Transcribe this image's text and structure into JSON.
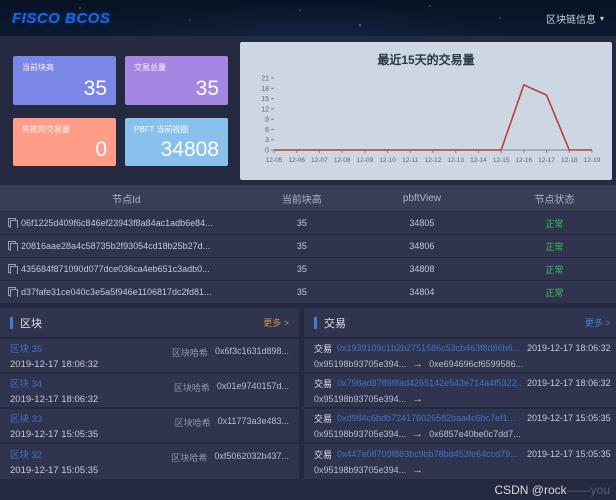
{
  "header": {
    "logo": "FISCO BCOS",
    "nav_dropdown": "区块链信息",
    "caret": "▾"
  },
  "stats": {
    "cards": [
      {
        "label": "当前块高",
        "value": "35",
        "color": "#7b87e6"
      },
      {
        "label": "交易总量",
        "value": "35",
        "color": "#a586e2"
      },
      {
        "label": "失败的交易量",
        "value": "0",
        "color": "#ff9d88"
      },
      {
        "label": "PBFT 当前视图",
        "value": "34808",
        "color": "#8ac0ec"
      }
    ]
  },
  "chart_data": {
    "type": "line",
    "title": "最近15天的交易量",
    "x": [
      "12-05",
      "12-06",
      "12-07",
      "12-08",
      "12-09",
      "12-10",
      "12-11",
      "12-12",
      "12-13",
      "12-14",
      "12-15",
      "12-16",
      "12-17",
      "12-18",
      "12-19"
    ],
    "series": [
      {
        "name": "交易量",
        "values": [
          0,
          0,
          0,
          0,
          0,
          0,
          0,
          0,
          0,
          0,
          0,
          19,
          16,
          0,
          0
        ],
        "color": "#b5413e"
      }
    ],
    "ylim": [
      0,
      21
    ],
    "yticks": [
      0,
      3,
      6,
      9,
      12,
      15,
      18,
      21
    ],
    "grid": false,
    "legend_position": "none",
    "background": "#cdd7e1",
    "xlabel": "",
    "ylabel": ""
  },
  "node_table": {
    "columns": [
      "节点Id",
      "当前块高",
      "pbftView",
      "节点状态"
    ],
    "status_color": "#3bc162",
    "rows": [
      {
        "node_id": "06f1225d409f6c846ef23943f8a84ac1adb6e84...",
        "block_height": "35",
        "pbft_view": "34805",
        "status": "正常"
      },
      {
        "node_id": "20816aae28a4c58735b2f93054cd18b25b27d...",
        "block_height": "35",
        "pbft_view": "34806",
        "status": "正常"
      },
      {
        "node_id": "435684f871090d077dce036ca4eb651c3adb0...",
        "block_height": "35",
        "pbft_view": "34808",
        "status": "正常"
      },
      {
        "node_id": "d37fafe31ce040c3e5a5f946e1106817dc2fd81...",
        "block_height": "35",
        "pbft_view": "34804",
        "status": "正常"
      }
    ]
  },
  "blocks_panel": {
    "title": "区块",
    "more_label": "更多 >",
    "hash_label": "区块哈希",
    "items": [
      {
        "name": "区块 35",
        "time": "2019-12-17 18:06:32",
        "hash": "0x6f3c1631d898..."
      },
      {
        "name": "区块 34",
        "time": "2019-12-17 18:06:32",
        "hash": "0x01e9740157d..."
      },
      {
        "name": "区块 33",
        "time": "2019-12-17 15:05:35",
        "hash": "0x11773a3e483..."
      },
      {
        "name": "区块 32",
        "time": "2019-12-17 15:05:35",
        "hash": "0xf5062032b437..."
      }
    ]
  },
  "tx_panel": {
    "title": "交易",
    "more_label": "更多 >",
    "tx_label": "交易",
    "arrow": "→",
    "items": [
      {
        "hash": "0x1939109c1b2b2751586c53cb463f8d86b6...",
        "time": "2019-12-17 18:06:32",
        "from": "0x95198b93705e394...",
        "to": "0xe694696cf6599586..."
      },
      {
        "hash": "0x798ad8789f8ad4265142e543e714a4f5322...",
        "time": "2019-12-17 18:06:32",
        "from": "0x95198b93705e394...",
        "to": ""
      },
      {
        "hash": "0xd984c6bdb724176026582baa4c6bc7ef1...",
        "time": "2019-12-17 15:05:35",
        "from": "0x95198b93705e394...",
        "to": "0x6857e40be0c7dd7..."
      },
      {
        "hash": "0x447e08709f883bc9bb78bd453fe64ccd79...",
        "time": "2019-12-17 15:05:35",
        "from": "0x95198b93705e394...",
        "to": ""
      }
    ]
  },
  "footer": {
    "watermark": "CSDN @rock",
    "watermark_suffix": "——you"
  }
}
